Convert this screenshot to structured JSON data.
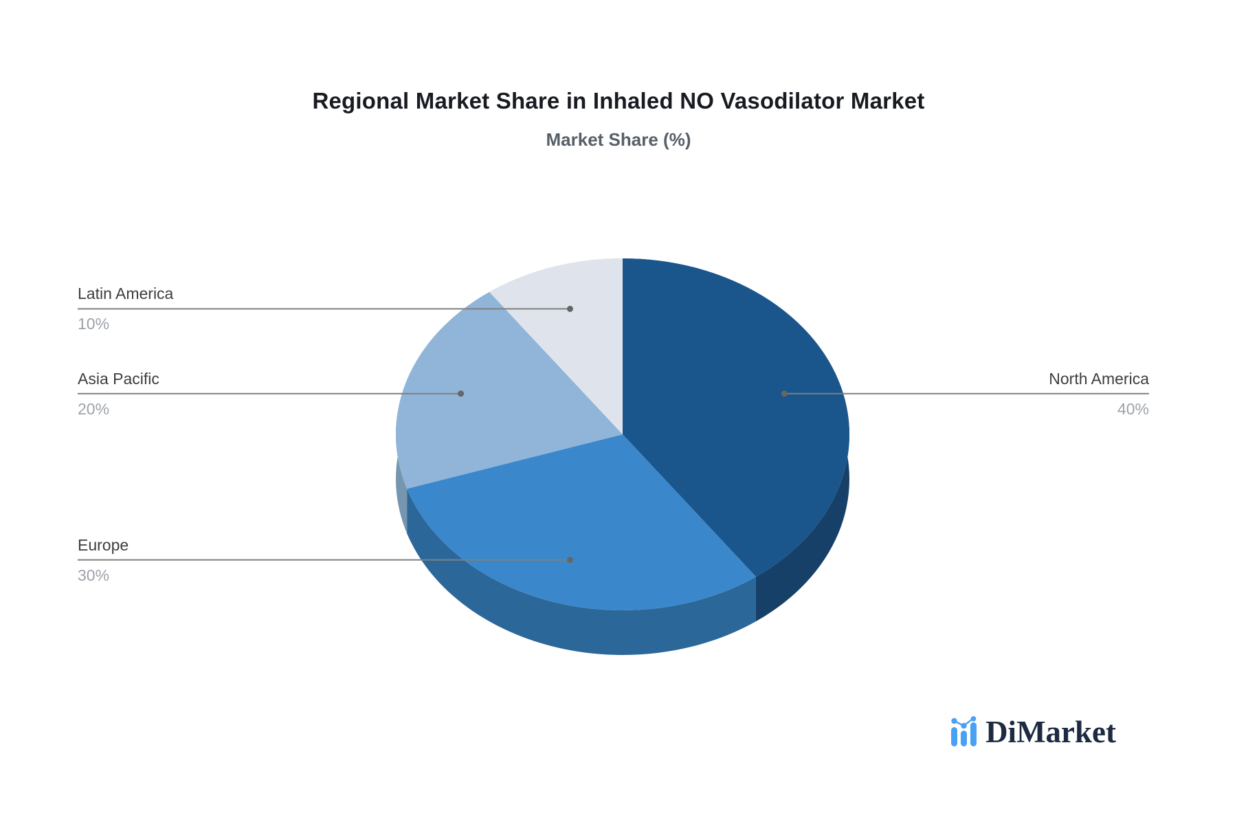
{
  "header": {
    "title": "Regional Market Share in Inhaled NO Vasodilator Market",
    "subtitle": "Market Share (%)"
  },
  "chart_data": {
    "type": "pie",
    "title": "Regional Market Share in Inhaled NO Vasodilator Market",
    "subtitle": "Market Share (%)",
    "unit": "%",
    "effect_3d": true,
    "start_angle_deg": -90,
    "direction": "clockwise",
    "legend_position": "leader-lines",
    "slices": [
      {
        "label": "North America",
        "value": 40,
        "color": "#1a568c",
        "wall_color": "#164067",
        "label_side": "right"
      },
      {
        "label": "Europe",
        "value": 30,
        "color": "#3a88cb",
        "wall_color": "#2c679a",
        "label_side": "left"
      },
      {
        "label": "Asia Pacific",
        "value": 20,
        "color": "#90b5d8",
        "wall_color": "#7695ae",
        "label_side": "left"
      },
      {
        "label": "Latin America",
        "value": 10,
        "color": "#dfe4ec",
        "wall_color": "#aeb2b8",
        "label_side": "left"
      }
    ],
    "leader_line_color": "#7f7f7f",
    "leader_dot_color": "#666666",
    "label_color": "#3d3d3d",
    "value_color": "#9da2a8"
  },
  "branding": {
    "logo_text": "DiMarket",
    "logo_color": "#1d2b42",
    "icon_color": "#4aa0f2"
  }
}
